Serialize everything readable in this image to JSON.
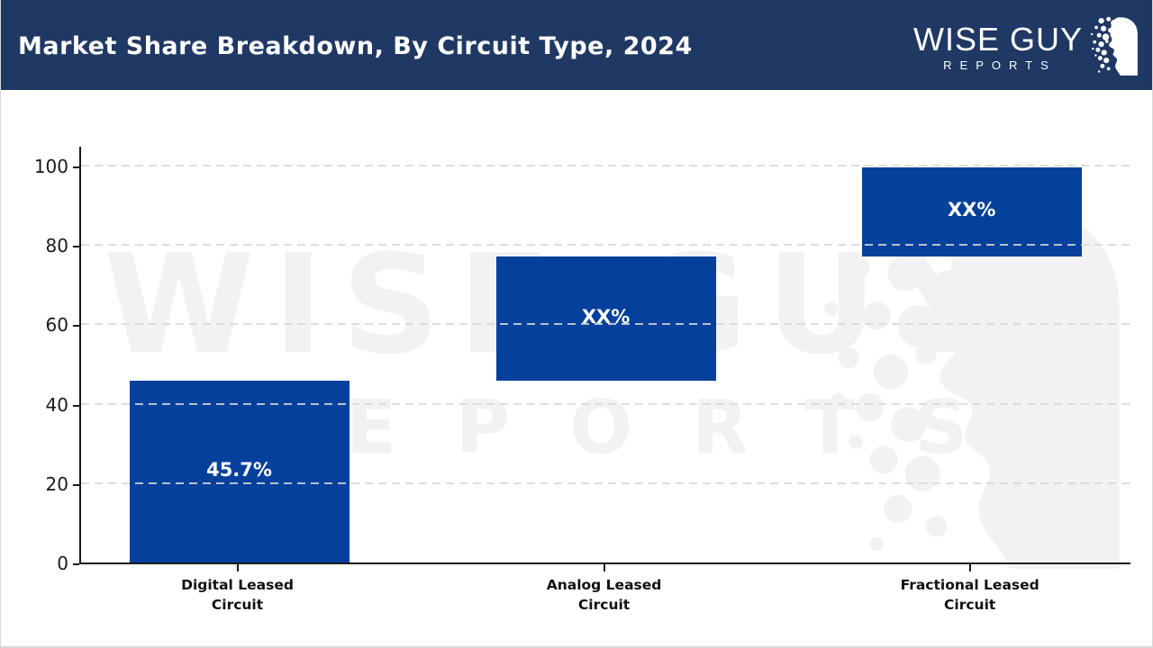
{
  "header": {
    "title": "Market Share Breakdown, By Circuit Type, 2024",
    "logo": {
      "line1": "WISE GUY",
      "line2": "REPORTS"
    }
  },
  "watermark": {
    "line1": "WISE GUY",
    "line2": "REPORTS"
  },
  "chart_data": {
    "type": "bar",
    "subtype": "waterfall",
    "title": "Market Share Breakdown, By Circuit Type, 2024",
    "categories": [
      "Digital Leased Circuit",
      "Analog Leased Circuit",
      "Fractional Leased Circuit"
    ],
    "series": [
      {
        "name": "Market share (%)",
        "segments": [
          {
            "category": "Digital Leased Circuit",
            "start": 0,
            "end": 45.7,
            "label": "45.7%"
          },
          {
            "category": "Analog Leased Circuit",
            "start": 45.7,
            "end": 77.2,
            "label": "XX%"
          },
          {
            "category": "Fractional Leased Circuit",
            "start": 77.2,
            "end": 99.5,
            "label": "XX%"
          }
        ]
      }
    ],
    "xlabel": "",
    "ylabel": "",
    "ylim": [
      0,
      105
    ],
    "yticks": [
      0,
      20,
      40,
      60,
      80,
      100
    ],
    "grid": "horizontal-dashed-drawn-above-bars",
    "legend": "none",
    "colors": {
      "bar": "#04409C",
      "bar_label": "#FFFFFF",
      "grid": "#DCDCDC",
      "axis": "#1A1A1A",
      "tick_label": "#1A1A1A",
      "category_label": "#111111",
      "header_bg": "#1F3864",
      "header_text": "#FFFFFF",
      "watermark": "#F2F2F4"
    }
  }
}
